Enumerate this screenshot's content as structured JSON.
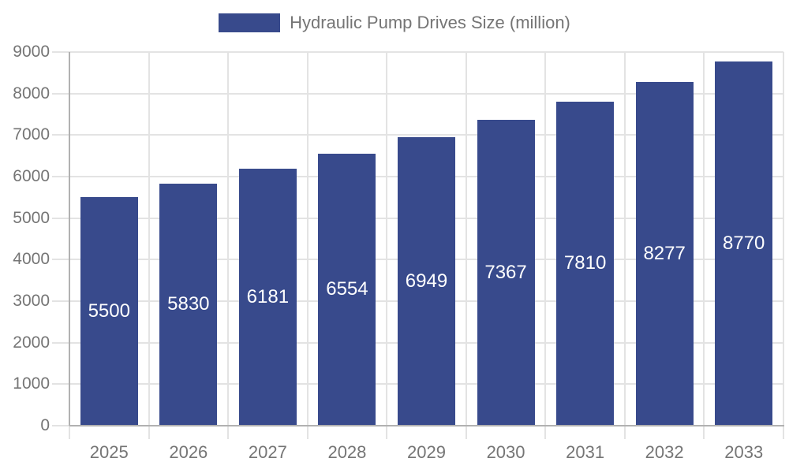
{
  "legend": {
    "label": "Hydraulic Pump Drives Size (million)"
  },
  "chart_data": {
    "type": "bar",
    "title": "Hydraulic Pump Drives Size (million)",
    "categories": [
      "2025",
      "2026",
      "2027",
      "2028",
      "2029",
      "2030",
      "2031",
      "2032",
      "2033"
    ],
    "values": [
      5500,
      5830,
      6181,
      6554,
      6949,
      7367,
      7810,
      8277,
      8770
    ],
    "xlabel": "",
    "ylabel": "",
    "ylim": [
      0,
      9000
    ],
    "ytick_step": 1000,
    "grid": true,
    "legend_position": "top-center",
    "bar_color": "#384a8c",
    "value_label_color": "#ffffff",
    "axis_text_color": "#757575",
    "grid_color": "#e3e3e3",
    "axis_line_color": "#b1b1b1"
  }
}
